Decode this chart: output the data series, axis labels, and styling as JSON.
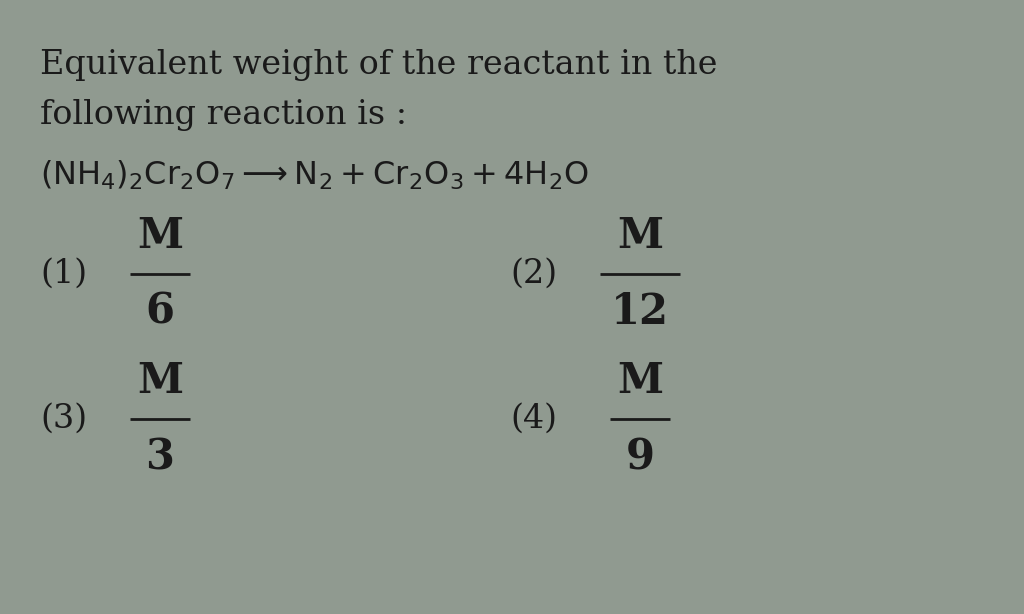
{
  "background_color": "#909a90",
  "text_color": "#1a1a1a",
  "title_line1": "Equivalent weight of the reactant in the",
  "title_line2": "following reaction is :",
  "font_size_title": 24,
  "font_size_reaction": 23,
  "font_size_options": 30,
  "font_size_label": 24,
  "options": [
    {
      "label": "(1)",
      "num": "M",
      "den": "6"
    },
    {
      "label": "(2)",
      "num": "M",
      "den": "12"
    },
    {
      "label": "(3)",
      "num": "M",
      "den": "3"
    },
    {
      "label": "(4)",
      "num": "M",
      "den": "9"
    }
  ]
}
